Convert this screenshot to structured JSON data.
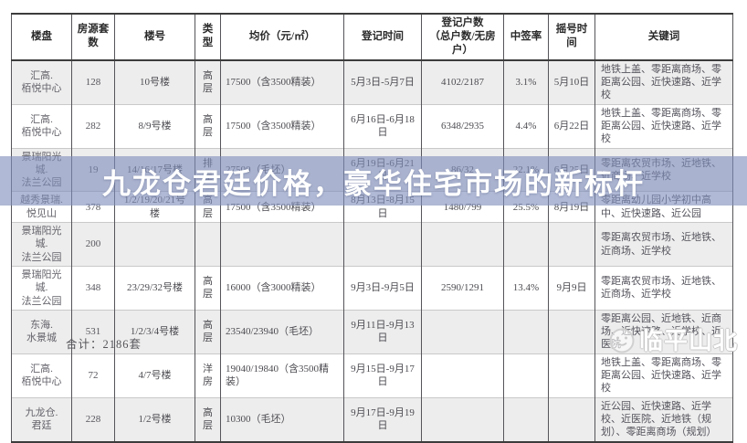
{
  "chart_data": {
    "type": "table",
    "title": "九龙仓君廷价格，豪华住宅市场的新标杆",
    "columns": [
      "楼盘",
      "房源套数",
      "楼号",
      "类型",
      "均价（元/㎡）",
      "登记时间",
      "登记户数\n（总户数/无房户）",
      "中签率",
      "摇号时间",
      "关键词"
    ],
    "rows": [
      [
        "汇高.\n栢悦中心",
        "128",
        "10号楼",
        "高层",
        "17500（含3500精装）",
        "5月3日-5月7日",
        "4102/2187",
        "3.1%",
        "5月10日",
        "地铁上盖、零距离商场、零距离公园、近快速路、近学校"
      ],
      [
        "汇高.\n栢悦中心",
        "282",
        "8/9号楼",
        "高层",
        "17500（含3500精装）",
        "6月16日-6月18日",
        "6348/2935",
        "4.4%",
        "6月22日",
        "地铁上盖、零距离商场、零距离公园、近快速路、近学校"
      ],
      [
        "景瑞阳光城.\n法兰公园",
        "19",
        "14/16/17号楼",
        "排屋",
        "27500（毛坯）",
        "6月19日-6月21日",
        "86/32",
        "22.1%",
        "6月25日",
        "零距离农贸市场、近地铁、近商场、近学校"
      ],
      [
        "越秀景瑞.\n悦见山",
        "378",
        "1/2/19/20/21号楼",
        "高层",
        "17500（含3500精装）",
        "8月13日-8月15日",
        "1480/799",
        "25.5%",
        "8月19日",
        "零距离幼儿园小学初中高中、近快速路、近公园"
      ],
      [
        "景瑞阳光城.\n法兰公园",
        "200",
        "",
        "",
        "",
        "",
        "",
        "",
        "",
        "零距离农贸市场、近地铁、近商场、近学校"
      ],
      [
        "景瑞阳光城.\n法兰公园",
        "348",
        "23/29/32号楼",
        "高层",
        "16000（含3000精装）",
        "9月3日-9月5日",
        "2590/1291",
        "13.4%",
        "9月9日",
        "零距离农贸市场、近地铁、近商场、近学校"
      ],
      [
        "东海.\n水景城",
        "531",
        "1/2/3/4号楼",
        "高层",
        "23540/23940（毛坯）",
        "9月11日-9月13日",
        "",
        "",
        "",
        "零距离公园、近地铁、近商场、近快速路、近学校、近医院"
      ],
      [
        "汇高.\n栢悦中心",
        "72",
        "4/7号楼",
        "洋房",
        "19040/19840（含3500精装）",
        "9月15日-9月17日",
        "",
        "",
        "",
        "地铁上盖、零距离商场、零距离公园、近快速路、近学校"
      ],
      [
        "九龙仓.\n君廷",
        "228",
        "1/2号楼",
        "高层",
        "10300（毛坯）",
        "9月17日-9月19日",
        "",
        "",
        "",
        "近公园、近快速路、近学校、近医院、近地铁（规划）、零距离商场（规划）"
      ]
    ],
    "footer_total": "合计：2186套"
  },
  "banner": {
    "title": "九龙仓君廷价格，豪华住宅市场的新标杆"
  },
  "watermark": {
    "icon": "smiley-face-icon",
    "text": "临平山北"
  },
  "colors": {
    "banner_overlay": "#808EBC",
    "row_alt": "#EDEDED",
    "table_border_dark": "#3C3C3C",
    "watermark_text": "#FFFFFF"
  }
}
